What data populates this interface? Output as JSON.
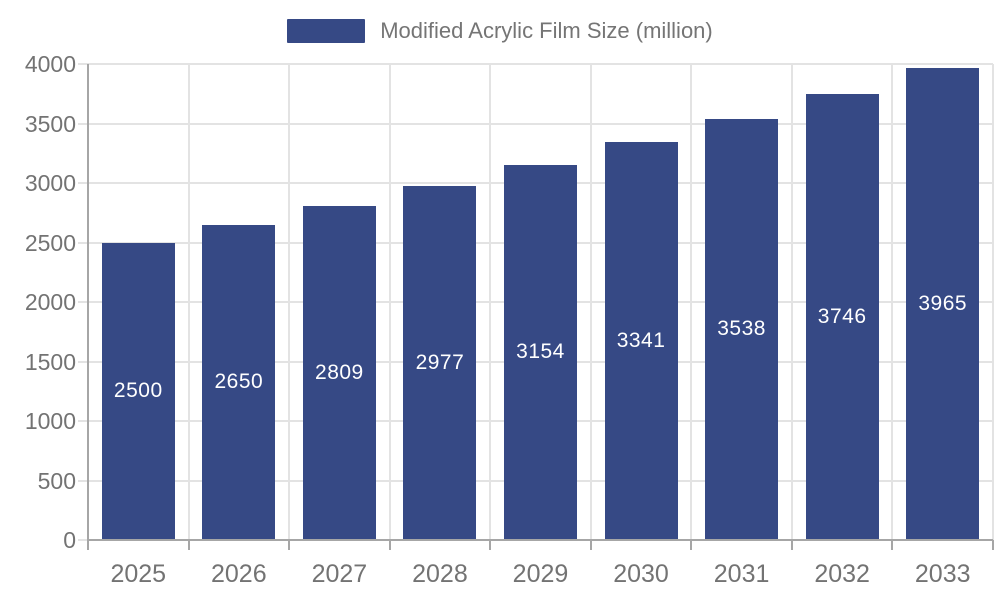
{
  "legend": {
    "label": "Modified Acrylic Film Size (million)"
  },
  "chart_data": {
    "type": "bar",
    "title": "",
    "categories": [
      "2025",
      "2026",
      "2027",
      "2028",
      "2029",
      "2030",
      "2031",
      "2032",
      "2033"
    ],
    "series": [
      {
        "name": "Modified Acrylic Film Size (million)",
        "values": [
          2500,
          2650,
          2809,
          2977,
          3154,
          3341,
          3538,
          3746,
          3965
        ]
      }
    ],
    "value_labels_position": "inside-center",
    "xlabel": "",
    "ylabel": "",
    "ylim": [
      0,
      4000
    ],
    "yticks": [
      0,
      500,
      1000,
      1500,
      2000,
      2500,
      3000,
      3500,
      4000
    ],
    "grid": true,
    "legend_position": "top-center",
    "colors": {
      "bar": "#364985",
      "grid": "#e3e3e3",
      "axis": "#a6a6a6",
      "tick_text": "#737373",
      "legend_text": "#757575",
      "value_text": "#ffffff",
      "background": "#ffffff"
    }
  }
}
